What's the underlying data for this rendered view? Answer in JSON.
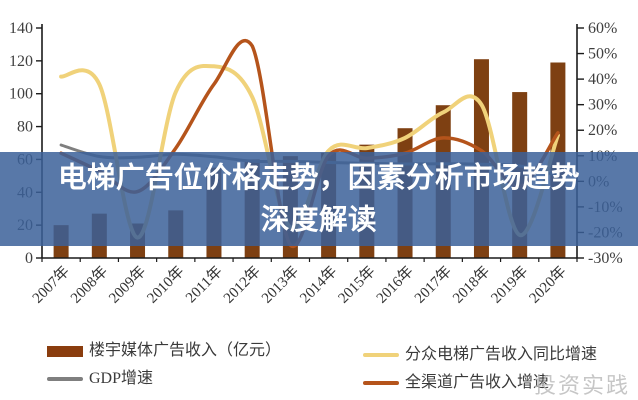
{
  "title_overlay": {
    "line1": "电梯广告位价格走势，因素分析市场趋势",
    "line2": "深度解读",
    "band_color": "rgba(59,96,153,0.85)"
  },
  "watermark": "投资实践",
  "chart_data": {
    "type": "combo-bar-line",
    "categories": [
      "2007年",
      "2008年",
      "2009年",
      "2010年",
      "2011年",
      "2012年",
      "2013年",
      "2014年",
      "2015年",
      "2016年",
      "2017年",
      "2018年",
      "2019年",
      "2020年"
    ],
    "y_left": {
      "min": 0,
      "max": 140,
      "step": 20,
      "ticks": [
        "140",
        "120",
        "100",
        "80",
        "60",
        "40",
        "20",
        "0"
      ]
    },
    "y_right": {
      "min": -30,
      "max": 60,
      "step": 10,
      "ticks": [
        "60%",
        "50%",
        "40%",
        "30%",
        "20%",
        "10%",
        "0%",
        "-10%",
        "-20%",
        "-30%"
      ]
    },
    "grid": "off",
    "legend_position": "bottom",
    "bar_series": {
      "name": "楼宇媒体广告收入（亿元）",
      "axis": "left",
      "color": "#7e4012",
      "values": [
        20,
        27,
        21,
        29,
        55,
        60,
        62,
        64,
        69,
        79,
        93,
        121,
        101,
        119
      ]
    },
    "line_series": [
      {
        "name": "GDP增速",
        "axis": "right",
        "color": "#7f7f7f",
        "width": 3,
        "values": [
          14.2,
          9.7,
          9.4,
          10.6,
          9.6,
          7.9,
          7.8,
          7.4,
          7.0,
          6.8,
          6.9,
          6.7,
          6.0,
          2.3
        ]
      },
      {
        "name": "分众电梯广告收入同比增速",
        "axis": "right",
        "color": "#f0d27a",
        "width": 4,
        "values": [
          41,
          38,
          -22,
          35,
          45,
          33,
          -18,
          12,
          13,
          17,
          27,
          30,
          -21,
          18
        ]
      },
      {
        "name": "全渠道广告收入增速",
        "axis": "right",
        "color": "#b5541b",
        "width": 3.5,
        "values": [
          11,
          4,
          -4,
          13,
          38,
          53,
          -25,
          10,
          9,
          11,
          17,
          12,
          -2,
          19
        ]
      }
    ],
    "legend": [
      {
        "label": "楼宇媒体广告收入（亿元）",
        "swatch": "bar",
        "color": "#8a3d0e"
      },
      {
        "label": "GDP增速",
        "swatch": "line",
        "color": "#7f7f7f"
      },
      {
        "label": "分众电梯广告收入同比增速",
        "swatch": "line",
        "color": "#f0d27a"
      },
      {
        "label": "全渠道广告收入增速",
        "swatch": "line",
        "color": "#b5541b"
      }
    ]
  }
}
